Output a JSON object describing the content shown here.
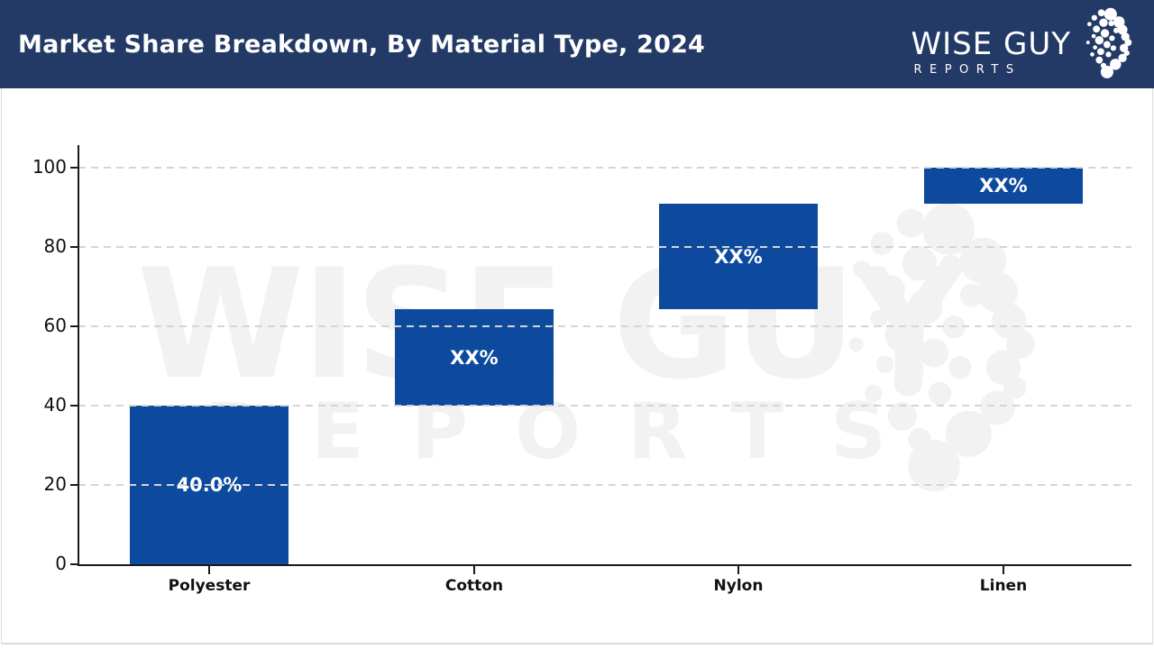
{
  "header": {
    "title": "Market Share Breakdown, By Material Type, 2024",
    "logo": {
      "name": "WISE GUY",
      "sub": "REPORTS"
    }
  },
  "watermark": {
    "line1": "WISE GUY",
    "line2": "REPORTS"
  },
  "colors": {
    "header_bg": "#233a66",
    "bar_fill": "#0d4a9e",
    "grid_line": "#d5d5d5",
    "axis_line": "#1a1a1a",
    "title_text": "#ffffff",
    "watermark_text": "#f2f2f2"
  },
  "chart_data": {
    "type": "bar",
    "variant": "waterfall",
    "title": "Market Share Breakdown, By Material Type, 2024",
    "categories": [
      "Polyester",
      "Cotton",
      "Nylon",
      "Linen"
    ],
    "bars": [
      {
        "category": "Polyester",
        "start": 0,
        "end": 40,
        "label": "40.0%"
      },
      {
        "category": "Cotton",
        "start": 40,
        "end": 64.3,
        "label": "XX%"
      },
      {
        "category": "Nylon",
        "start": 64.3,
        "end": 90.9,
        "label": "XX%"
      },
      {
        "category": "Linen",
        "start": 90.9,
        "end": 100,
        "label": "XX%"
      }
    ],
    "xlabel": "",
    "ylabel": "",
    "ylim": [
      0,
      100
    ],
    "yticks": [
      0,
      20,
      40,
      60,
      80,
      100
    ],
    "grid": "horizontal-dashed-over-bars",
    "legend": "none",
    "bar_color": "#0d4a9e"
  }
}
